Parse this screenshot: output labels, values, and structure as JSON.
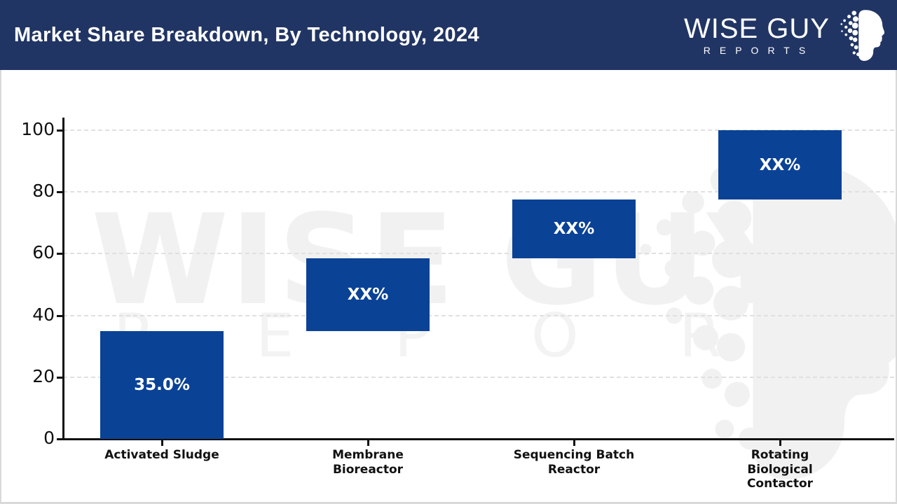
{
  "header": {
    "title": "Market Share Breakdown, By Technology, 2024",
    "logo": {
      "line1": "WISE GUY",
      "line2": "REPORTS"
    }
  },
  "watermark": {
    "line1": "WISE GUY",
    "line2": "R E P O R T S"
  },
  "colors": {
    "header_bg": "#213564",
    "bar": "#0a4296",
    "axis": "#111111",
    "grid": "#e0e0e0",
    "watermark": "#f1f1f2"
  },
  "chart_data": {
    "type": "bar",
    "subtype": "waterfall-floating-bars",
    "title": "Market Share Breakdown, By Technology, 2024",
    "categories": [
      "Activated Sludge",
      "Membrane\nBioreactor",
      "Sequencing Batch\nReactor",
      "Rotating\nBiological\nContactor"
    ],
    "bars": [
      {
        "category": "Activated Sludge",
        "start": 0,
        "end": 35,
        "label": "35.0%"
      },
      {
        "category": "Membrane\nBioreactor",
        "start": 35,
        "end": 58.5,
        "label": "XX%"
      },
      {
        "category": "Sequencing Batch\nReactor",
        "start": 58.5,
        "end": 77.5,
        "label": "XX%"
      },
      {
        "category": "Rotating\nBiological\nContactor",
        "start": 77.5,
        "end": 100,
        "label": "XX%"
      }
    ],
    "xlabel": "",
    "ylabel": "",
    "yticks": [
      0,
      20,
      40,
      60,
      80,
      100
    ],
    "ylim": [
      0,
      100
    ],
    "grid": "horizontal dashed",
    "legend": "none",
    "bar_color": "#0a4296",
    "bar_label_color": "#ffffff"
  }
}
